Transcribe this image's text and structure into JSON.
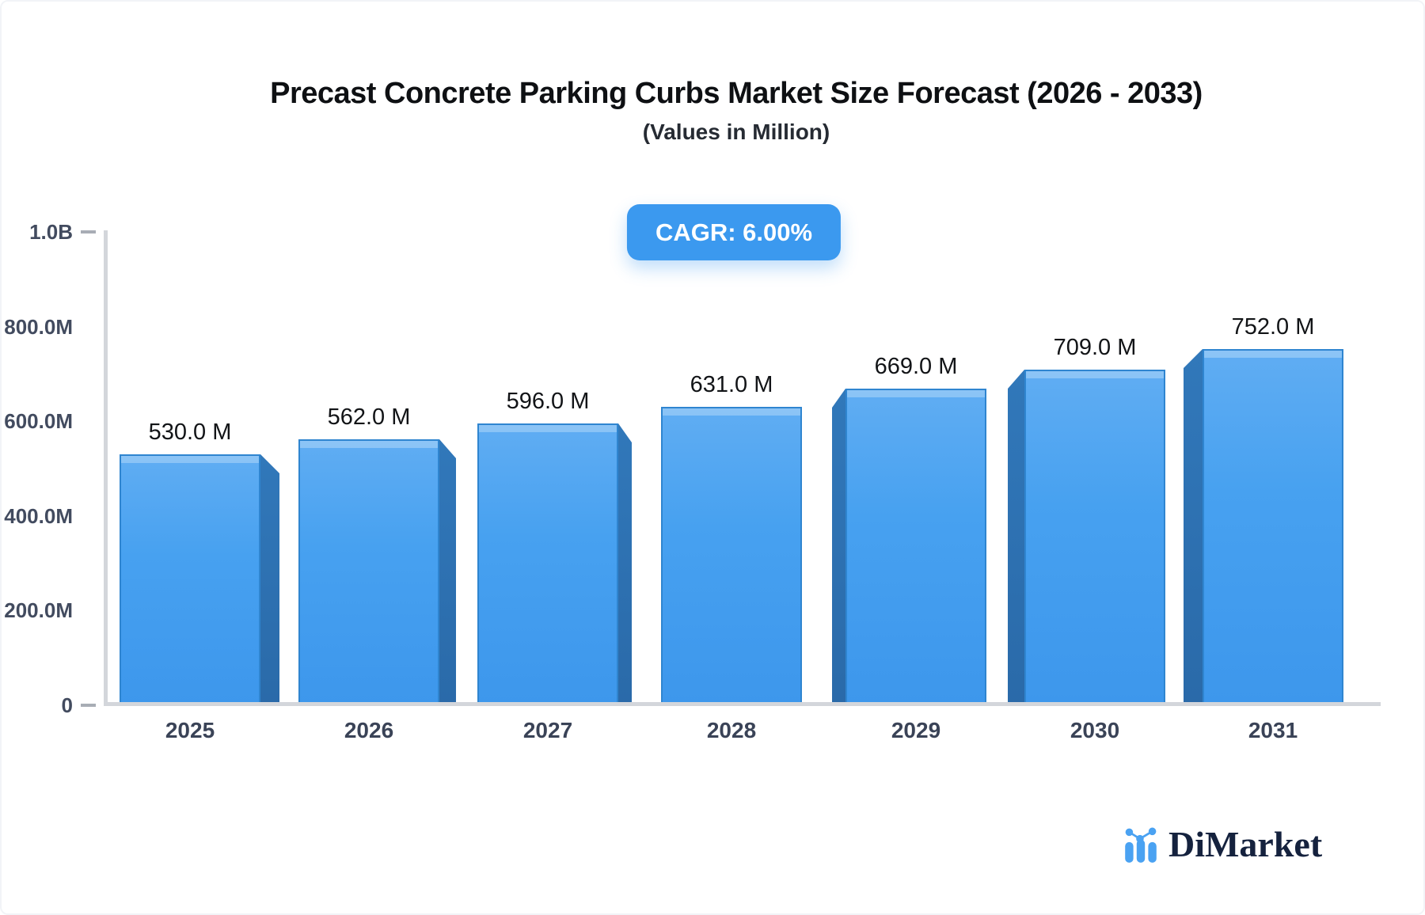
{
  "header": {
    "title": "Precast Concrete Parking Curbs Market Size Forecast (2026 - 2033)",
    "subtitle": "(Values in Million)"
  },
  "badge": {
    "label": "CAGR: 6.00%"
  },
  "chart_data": {
    "type": "bar",
    "title": "Precast Concrete Parking Curbs Market Size Forecast (2026 - 2033)",
    "subtitle": "(Values in Million)",
    "categories": [
      "2025",
      "2026",
      "2027",
      "2028",
      "2029",
      "2030",
      "2031"
    ],
    "values": [
      530,
      562,
      596,
      631,
      669,
      709,
      752
    ],
    "bar_labels": [
      "530.0 M",
      "562.0 M",
      "596.0 M",
      "631.0 M",
      "669.0 M",
      "709.0 M",
      "752.0 M"
    ],
    "cagr_label": "CAGR: 6.00%",
    "xlabel": "",
    "ylabel": "",
    "ylim": [
      0,
      1000
    ],
    "yticks": [
      {
        "value": 0,
        "label": "0",
        "dash": true
      },
      {
        "value": 200,
        "label": "200.0M",
        "dash": false
      },
      {
        "value": 400,
        "label": "400.0M",
        "dash": false
      },
      {
        "value": 600,
        "label": "600.0M",
        "dash": false
      },
      {
        "value": 800,
        "label": "800.0M",
        "dash": false
      },
      {
        "value": 1000,
        "label": "1.0B",
        "dash": true
      }
    ],
    "grid": false,
    "legend": null,
    "bar_style": "3d-perspective-center"
  },
  "footer": {
    "brand": "DiMarket",
    "logo_icon": "bar-chart-trend-icon"
  },
  "colors": {
    "bar_face": "#449ff0",
    "bar_face_light": "#7cbdf7",
    "bar_face_border": "#2f85d0",
    "bar_side": "#2e74b6",
    "badge_bg": "#3b99ef",
    "badge_text": "#ffffff",
    "axis_line": "#d3d6db",
    "tick_dash": "#a8adb5",
    "tick_text": "#424b5f",
    "value_text": "#121417",
    "year_text": "#3a4357",
    "title_text": "#0e1013",
    "brand_text": "#15223e",
    "brand_icon": "#4aa2f2"
  }
}
